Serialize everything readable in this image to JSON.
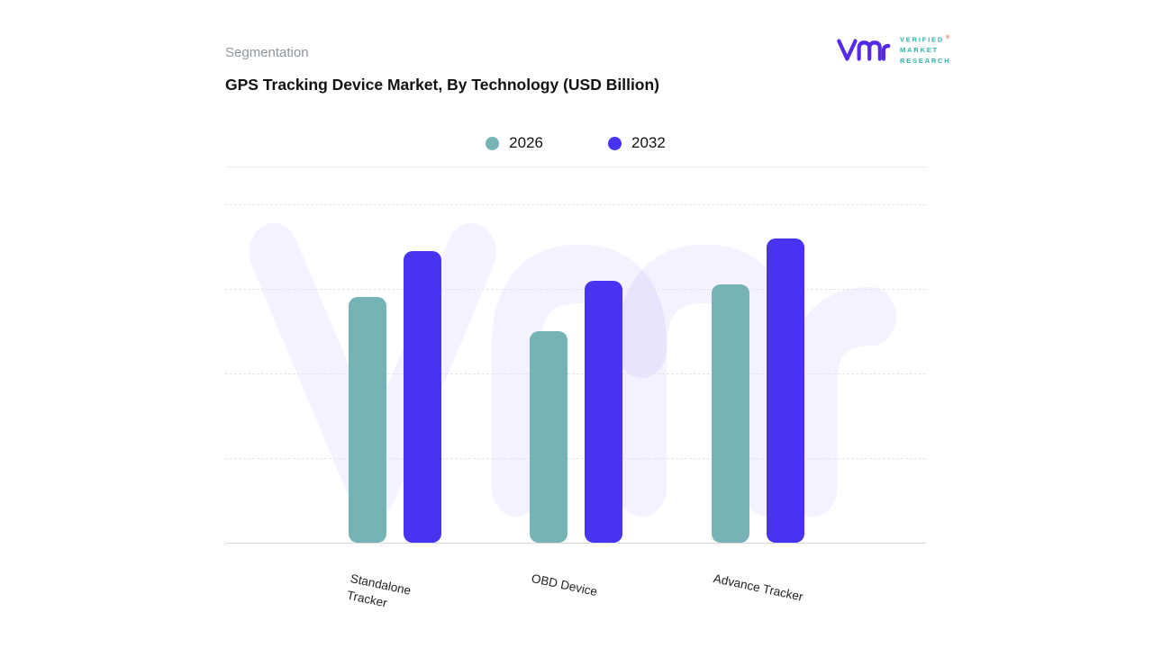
{
  "header": {
    "eyebrow": "Segmentation",
    "title": "GPS Tracking Device Market, By Technology (USD Billion)"
  },
  "logo": {
    "lines": [
      "VERIFIED",
      "MARKET",
      "RESEARCH"
    ],
    "registered": "®",
    "mark_color": "#5629e6",
    "text_color": "#2fb3ad"
  },
  "watermark": "Vmr",
  "chart_data": {
    "type": "bar",
    "title": "GPS Tracking Device Market, By Technology (USD Billion)",
    "categories": [
      "Standalone Tracker",
      "OBD Device",
      "Advance Tracker"
    ],
    "label_lines": [
      [
        "Standalone",
        "Tracker"
      ],
      [
        "OBD Device"
      ],
      [
        "Advance Tracker"
      ]
    ],
    "series": [
      {
        "name": "2026",
        "color": "#76b3b7",
        "values": [
          2.9,
          2.5,
          3.05
        ]
      },
      {
        "name": "2032",
        "color": "#4733f0",
        "values": [
          3.45,
          3.1,
          3.6
        ]
      }
    ],
    "ylim": [
      0,
      4
    ],
    "grid": "dashed horizontal, solid baseline",
    "legend_position": "top-center",
    "xlabel": "",
    "ylabel": ""
  }
}
